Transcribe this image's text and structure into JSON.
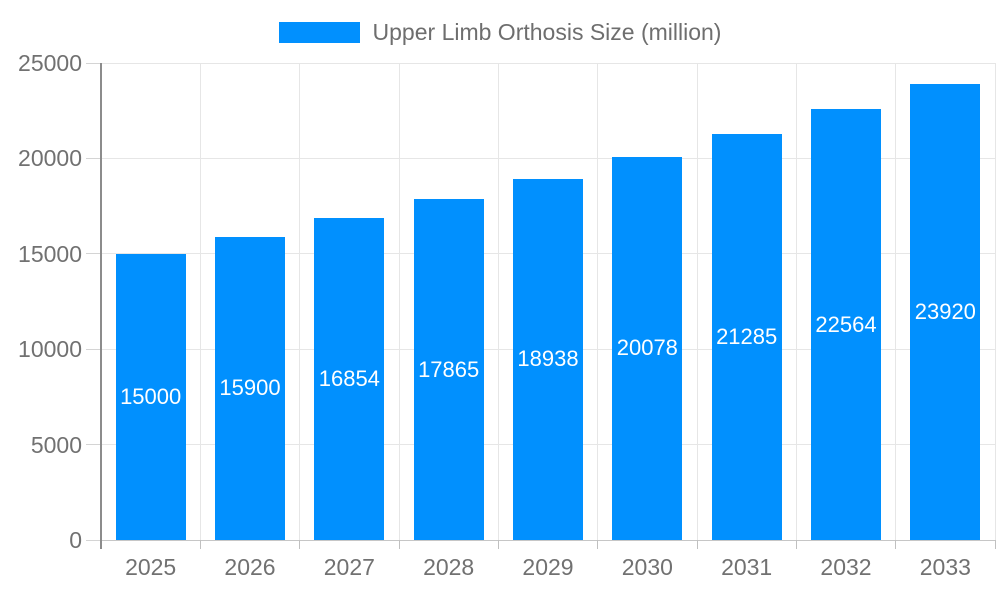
{
  "legend": {
    "label": "Upper Limb Orthosis Size (million)"
  },
  "colors": {
    "bar": "#0190fe",
    "gridline": "#e6e6e6",
    "y_axis_line": "#8c8c8c",
    "x_axis_line": "#c6c6c6",
    "y_tick": "#d4d4d4",
    "x_tick": "#c0c0c0",
    "axis_label_text": "#717171",
    "legend_text": "#6e6e6e",
    "value_label_text": "#ffffff",
    "background": "#ffffff"
  },
  "chart_data": {
    "type": "bar",
    "title": "",
    "legend_entries": [
      "Upper Limb Orthosis Size (million)"
    ],
    "legend_position": "top-center",
    "categories": [
      "2025",
      "2026",
      "2027",
      "2028",
      "2029",
      "2030",
      "2031",
      "2032",
      "2033"
    ],
    "values": [
      15000,
      15900,
      16854,
      17865,
      18938,
      20078,
      21285,
      22564,
      23920
    ],
    "value_labels": [
      "15000",
      "15900",
      "16854",
      "17865",
      "18938",
      "20078",
      "21285",
      "22564",
      "23920"
    ],
    "xlabel": "",
    "ylabel": "",
    "ylim": [
      0,
      25000
    ],
    "yticks": [
      0,
      5000,
      10000,
      15000,
      20000,
      25000
    ],
    "ytick_labels": [
      "0",
      "5000",
      "10000",
      "15000",
      "20000",
      "25000"
    ],
    "grid": true,
    "value_labels_inside_bars": true,
    "value_label_vertical_position": "bar-center"
  }
}
